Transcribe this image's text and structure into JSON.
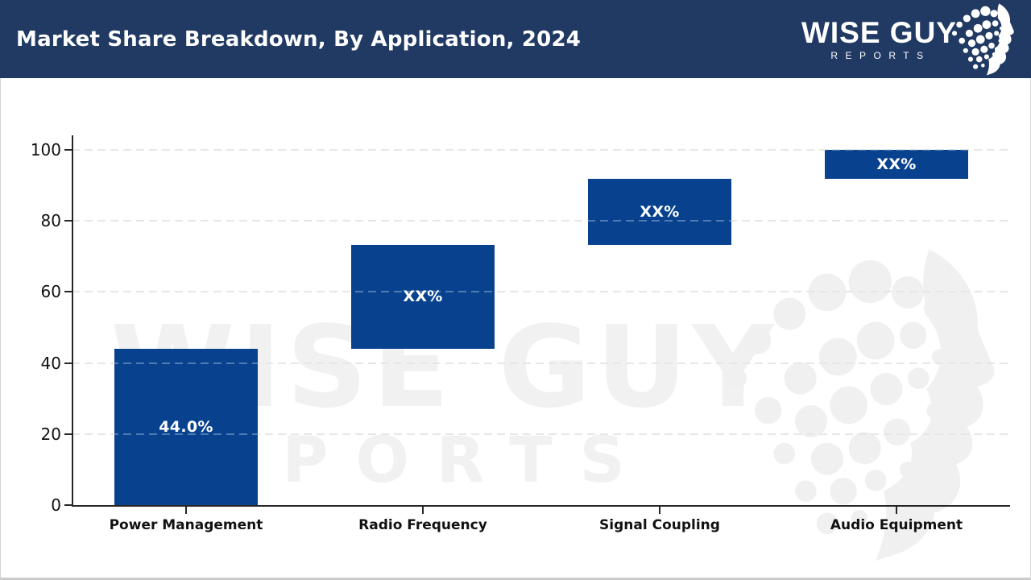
{
  "header": {
    "title": "Market Share Breakdown, By Application, 2024",
    "background_color": "#203a64",
    "logo": {
      "line1": "WISE GUY",
      "line2": "REPORTS"
    }
  },
  "watermark": {
    "line1": "WISE GUY",
    "line2": "REPORTS"
  },
  "chart_data": {
    "type": "bar",
    "subtype": "waterfall",
    "title": "Market Share Breakdown, By Application, 2024",
    "categories": [
      "Power Management",
      "Radio Frequency",
      "Signal Coupling",
      "Audio Equipment"
    ],
    "segments": [
      {
        "category": "Power Management",
        "start": 0,
        "end": 44,
        "label": "44.0%"
      },
      {
        "category": "Radio Frequency",
        "start": 44,
        "end": 73.3,
        "label": "XX%"
      },
      {
        "category": "Signal Coupling",
        "start": 73.3,
        "end": 91.8,
        "label": "XX%"
      },
      {
        "category": "Audio Equipment",
        "start": 91.8,
        "end": 100,
        "label": "XX%"
      }
    ],
    "y_ticks": [
      0,
      20,
      40,
      60,
      80,
      100
    ],
    "ylim": [
      0,
      104
    ],
    "xlabel": "",
    "ylabel": "",
    "grid": "horizontal-dashed",
    "legend": "none",
    "bar_color": "#08428f",
    "bar_label_color": "#ffffff"
  }
}
